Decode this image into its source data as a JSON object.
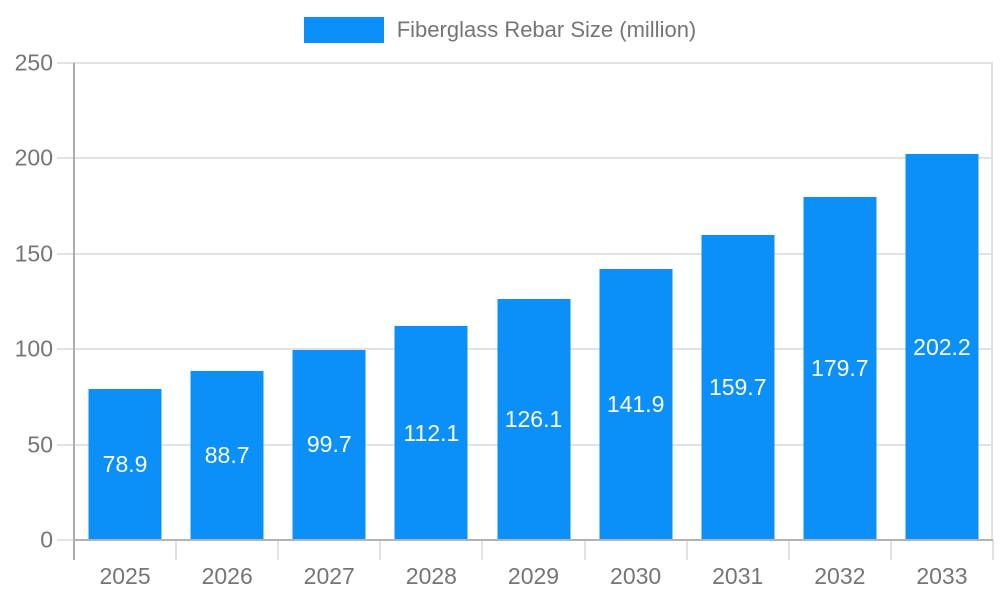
{
  "chart_data": {
    "type": "bar",
    "title": "Fiberglass Rebar Size (million)",
    "categories": [
      "2025",
      "2026",
      "2027",
      "2028",
      "2029",
      "2030",
      "2031",
      "2032",
      "2033"
    ],
    "values": [
      78.9,
      88.7,
      99.7,
      112.1,
      126.1,
      141.9,
      159.7,
      179.7,
      202.2
    ],
    "value_labels": [
      "78.9",
      "88.7",
      "99.7",
      "112.1",
      "126.1",
      "141.9",
      "159.7",
      "179.7",
      "202.2"
    ],
    "xlabel": "",
    "ylabel": "",
    "ylim": [
      0,
      250
    ],
    "yticks": [
      0,
      50,
      100,
      150,
      200,
      250
    ],
    "grid": true,
    "legend_position": "top-center",
    "colors": {
      "bar": "#0a90f8",
      "bar_label_text": "#ffffff",
      "axis_text": "#757575",
      "gridline": "#e2e2e2",
      "axis_line": "#b0b0b0"
    }
  }
}
